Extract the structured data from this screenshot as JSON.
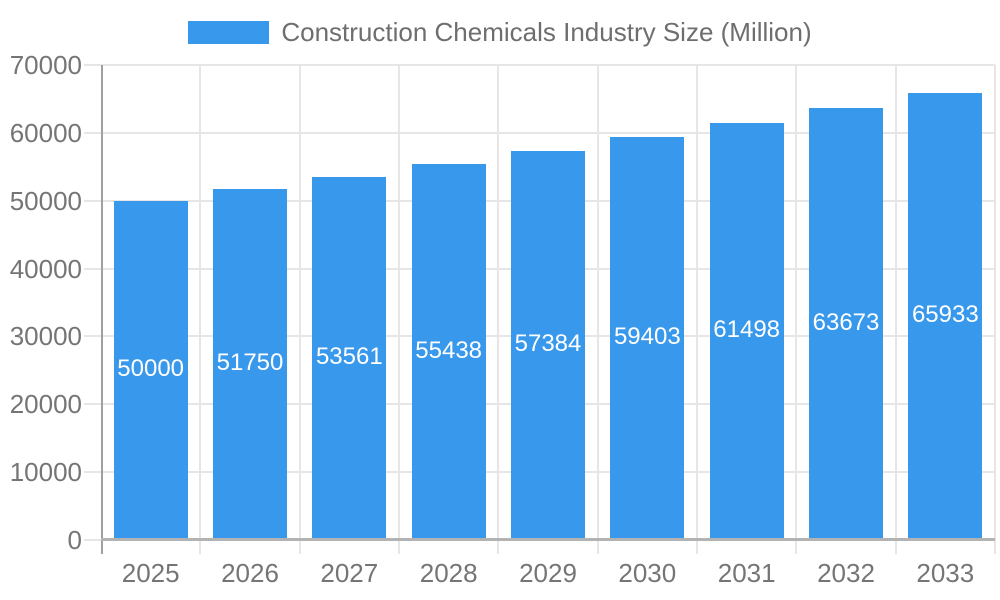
{
  "chart_data": {
    "type": "bar",
    "title": "Construction Chemicals Industry Size (Million)",
    "legend_label": "Construction Chemicals Industry Size (Million)",
    "legend_position": "top",
    "categories": [
      "2025",
      "2026",
      "2027",
      "2028",
      "2029",
      "2030",
      "2031",
      "2032",
      "2033"
    ],
    "series": [
      {
        "name": "Construction Chemicals Industry Size (Million)",
        "values": [
          50000,
          51750,
          53561,
          55438,
          57384,
          59403,
          61498,
          63673,
          65933
        ]
      }
    ],
    "value_labels": [
      "50000",
      "51750",
      "53561",
      "55438",
      "57384",
      "59403",
      "61498",
      "63673",
      "65933"
    ],
    "value_label_placement": "inside-middle",
    "xlabel": "",
    "ylabel": "",
    "ylim": [
      0,
      70000
    ],
    "yticks": [
      0,
      10000,
      20000,
      30000,
      40000,
      50000,
      60000,
      70000
    ],
    "grid": "horizontal and vertical light gray gridlines",
    "colors": {
      "bar": "#3898ec",
      "gridline": "#e6e6e6",
      "axis_line": "#a0a0a0",
      "baseline": "#b3b3b3",
      "axis_label_text": "#757575",
      "legend_text": "#6e6e6e",
      "value_label_text": "#ffffff",
      "background": "#ffffff"
    }
  }
}
